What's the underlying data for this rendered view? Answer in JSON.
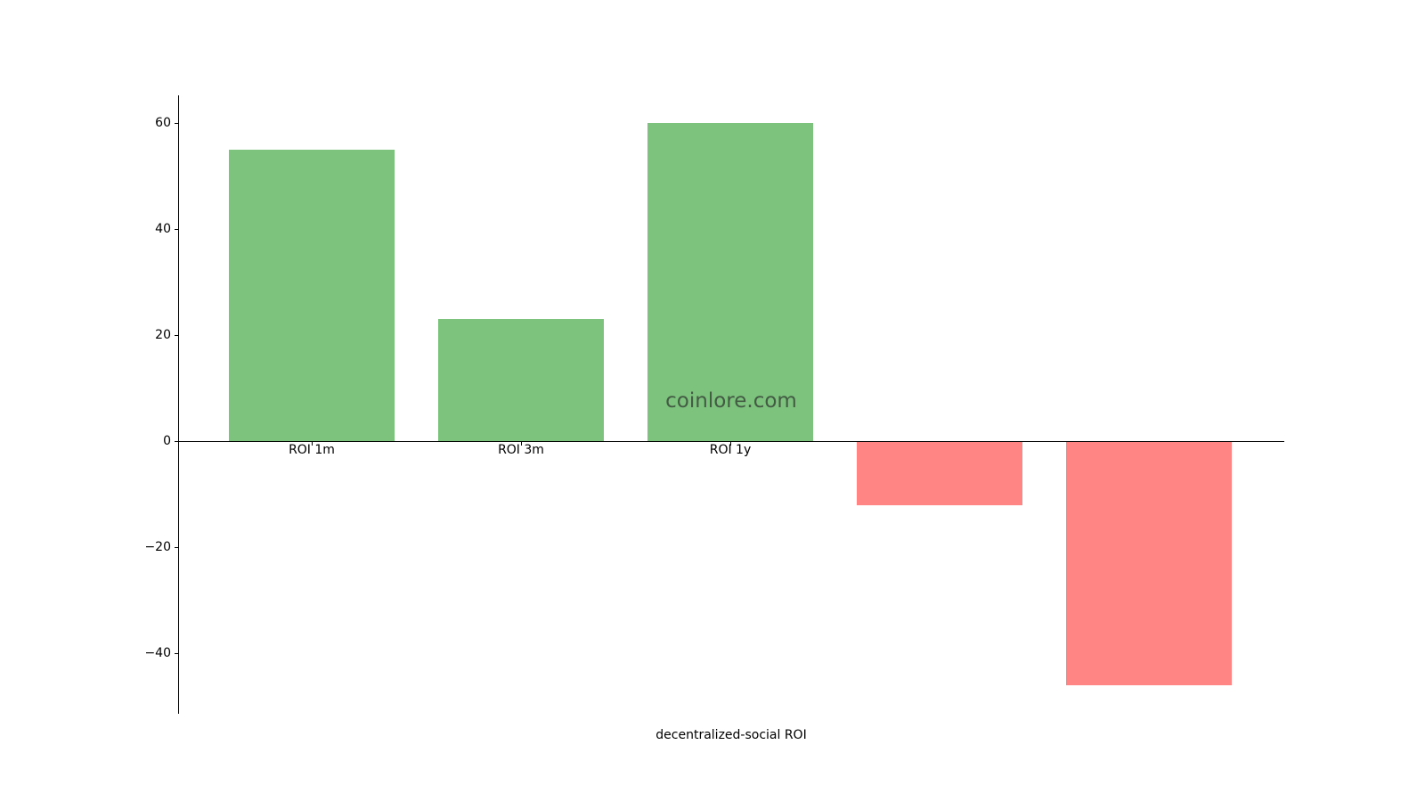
{
  "watermark": "coinlore.com",
  "chart_data": {
    "type": "bar",
    "categories": [
      "ROI 1m",
      "ROI 3m",
      "ROI 1y",
      "",
      ""
    ],
    "values": [
      55,
      23,
      60,
      -12,
      -46
    ],
    "title": "",
    "xlabel": "decentralized-social ROI",
    "ylabel": "",
    "ylim": [
      -51.3,
      65.3
    ],
    "yticks": [
      60,
      40,
      20,
      0,
      -20,
      -40
    ],
    "ytick_labels": [
      "60",
      "40",
      "20",
      "0",
      "−20",
      "−40"
    ],
    "grid": false,
    "legend": null,
    "positive_color": "#7dc37e",
    "negative_color": "#ff8484",
    "axis_color": "#000000",
    "background_color": "#ffffff"
  }
}
